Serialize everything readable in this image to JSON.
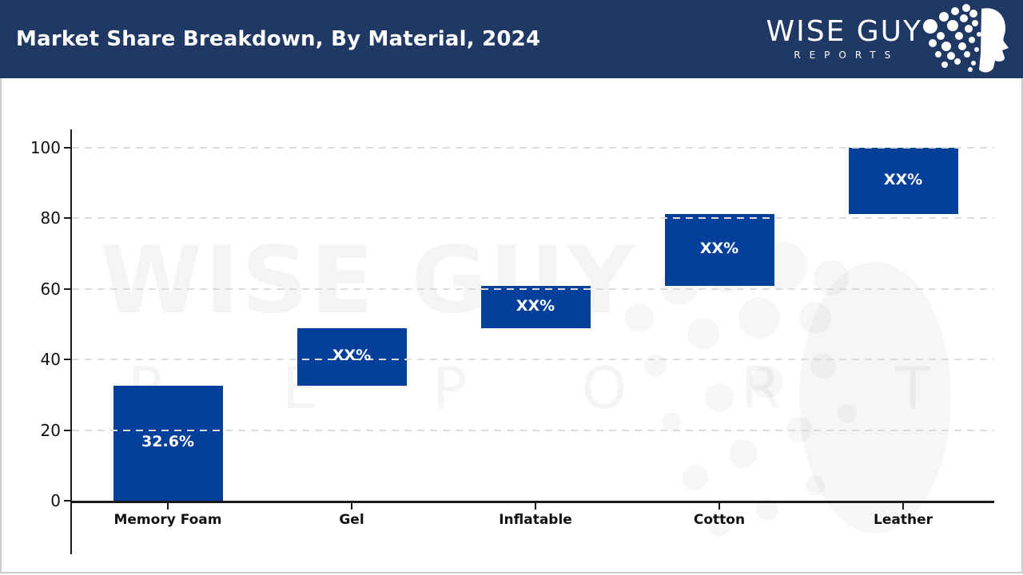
{
  "header": {
    "title": "Market Share Breakdown, By Material, 2024",
    "logo": {
      "wordmark": "WISE GUY",
      "subtext": "REPORTS"
    }
  },
  "watermark": {
    "line1": "WISE GUY",
    "line2": "R E P O R T S"
  },
  "chart_data": {
    "type": "bar",
    "subtype": "waterfall",
    "title": "Market Share Breakdown, By Material, 2024",
    "categories": [
      "Memory Foam",
      "Gel",
      "Inflatable",
      "Cotton",
      "Leather"
    ],
    "series": [
      {
        "name": "Market Share",
        "segments": [
          {
            "category": "Memory Foam",
            "start": 0,
            "end": 32.6,
            "label": "32.6%"
          },
          {
            "category": "Gel",
            "start": 32.6,
            "end": 48.8,
            "label": "XX%"
          },
          {
            "category": "Inflatable",
            "start": 48.8,
            "end": 60.9,
            "label": "XX%"
          },
          {
            "category": "Cotton",
            "start": 60.9,
            "end": 81.2,
            "label": "XX%"
          },
          {
            "category": "Leather",
            "start": 81.2,
            "end": 100,
            "label": "XX%"
          }
        ]
      }
    ],
    "xlabel": "",
    "ylabel": "",
    "ylim": [
      0,
      100
    ],
    "yticks": [
      0,
      20,
      40,
      60,
      80,
      100
    ],
    "grid": "horizontal-dashed",
    "legend": "none",
    "colors": {
      "bar": "#04409a",
      "bar_label": "#ffffff",
      "axis": "#1a1a1a",
      "grid": "#dcdcdc",
      "header_bg": "#1f3864",
      "watermark": "#f3f3f3"
    }
  }
}
